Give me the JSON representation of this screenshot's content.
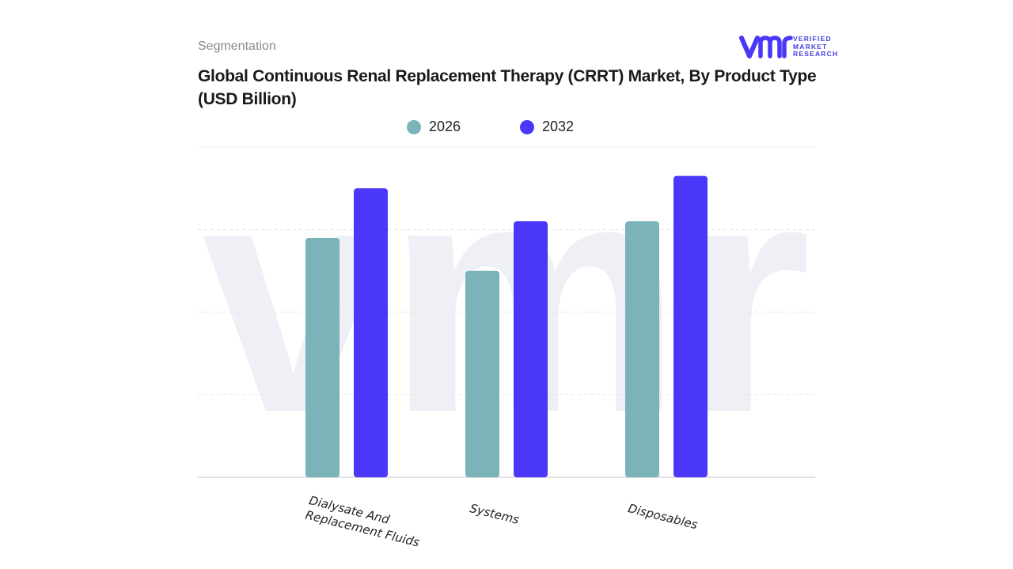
{
  "header": {
    "section": "Segmentation",
    "title_line1": "Global Continuous Renal Replacement Therapy (CRRT) Market, By Product Type",
    "title_line2": "(USD Billion)"
  },
  "logo": {
    "mark": "vmr",
    "line1": "VERIFIED",
    "line2": "MARKET",
    "line3": "RESEARCH"
  },
  "chart_data": {
    "type": "bar",
    "title": "Global Continuous Renal Replacement Therapy (CRRT) Market, By Product Type (USD Billion)",
    "categories": [
      "Dialysate And Replacement Fluids",
      "Systems",
      "Disposables"
    ],
    "category_lines": [
      [
        "Dialysate And",
        "Replacement Fluids"
      ],
      [
        "Systems"
      ],
      [
        "Disposables"
      ]
    ],
    "series": [
      {
        "name": "2026",
        "color": "#7ab3b8",
        "values": [
          2.9,
          2.5,
          3.1
        ]
      },
      {
        "name": "2032",
        "color": "#4a37f8",
        "values": [
          3.5,
          3.1,
          3.65
        ]
      }
    ],
    "ylim": [
      0,
      4
    ],
    "grid": true,
    "legend": "top-center",
    "xlabel": "",
    "ylabel": ""
  }
}
